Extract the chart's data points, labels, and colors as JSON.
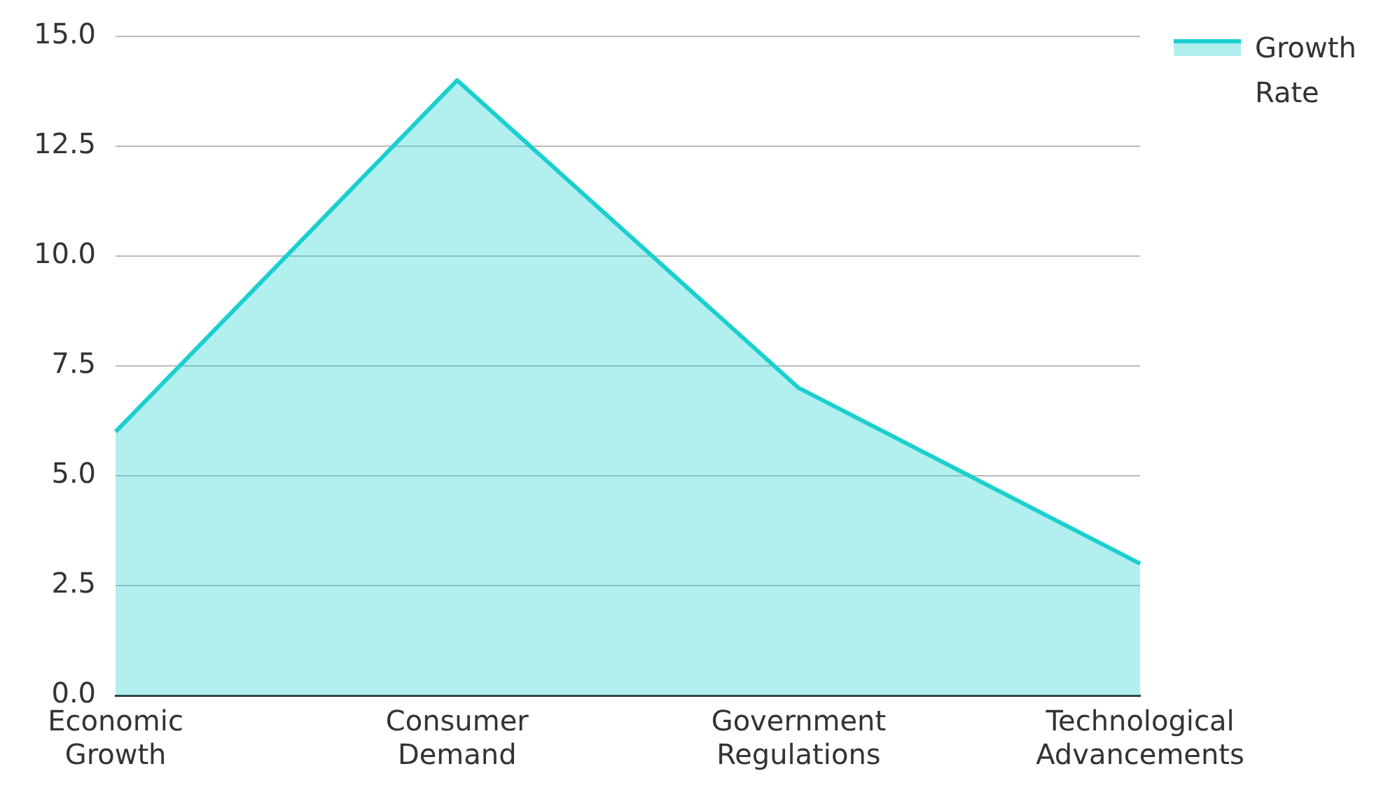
{
  "chart_data": {
    "type": "area",
    "categories": [
      "Economic Growth",
      "Consumer Demand",
      "Government Regulations",
      "Technological Advancements"
    ],
    "series": [
      {
        "name": "Growth Rate",
        "color": "#1ccfcf",
        "values": [
          6,
          14,
          7,
          3
        ]
      }
    ],
    "ylim": [
      0,
      15
    ],
    "yticks": [
      {
        "value": 0,
        "label": "0.0"
      },
      {
        "value": 2.5,
        "label": "2.5"
      },
      {
        "value": 5,
        "label": "5.0"
      },
      {
        "value": 7.5,
        "label": "7.5"
      },
      {
        "value": 10,
        "label": "10.0"
      },
      {
        "value": 12.5,
        "label": "12.5"
      },
      {
        "value": 15,
        "label": "15.0"
      }
    ],
    "grid": "y",
    "legend": "top right",
    "marker": "none"
  }
}
